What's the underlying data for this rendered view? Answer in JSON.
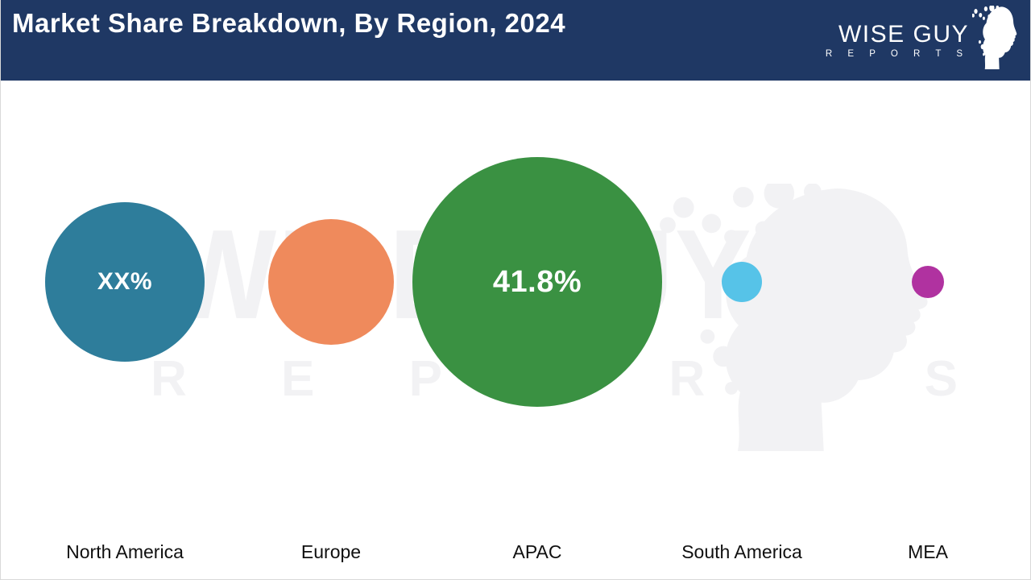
{
  "colors": {
    "header_navy": "#1f3864",
    "watermark_gray": "#f2f2f4",
    "label_text": "#101010",
    "bubble_value_text": "#ffffff"
  },
  "header": {
    "title": "Market Share Breakdown, By Region, 2024",
    "logo_line1": "WISE GUY",
    "logo_line2": "R E P O R T S"
  },
  "watermark": {
    "line1": "WISE GUY",
    "line2": "R E P O R T S"
  },
  "chart_data": {
    "type": "bubble",
    "title": "Market Share Breakdown, By Region, 2024",
    "categories": [
      "North America",
      "Europe",
      "APAC",
      "South America",
      "MEA"
    ],
    "series": [
      {
        "name": "North America",
        "value": null,
        "value_label": "XX%",
        "color": "#2e7d9b",
        "radius_px": 99
      },
      {
        "name": "Europe",
        "value": null,
        "value_label": "",
        "color": "#ef8a5c",
        "radius_px": 78
      },
      {
        "name": "APAC",
        "value": 41.8,
        "value_label": "41.8%",
        "color": "#3a9142",
        "radius_px": 155
      },
      {
        "name": "South America",
        "value": null,
        "value_label": "",
        "color": "#56c3e8",
        "radius_px": 25
      },
      {
        "name": "MEA",
        "value": null,
        "value_label": "",
        "color": "#b032a0",
        "radius_px": 20
      }
    ],
    "legend_position": "category labels centered below each bubble",
    "ylabel": "",
    "xlabel": ""
  }
}
